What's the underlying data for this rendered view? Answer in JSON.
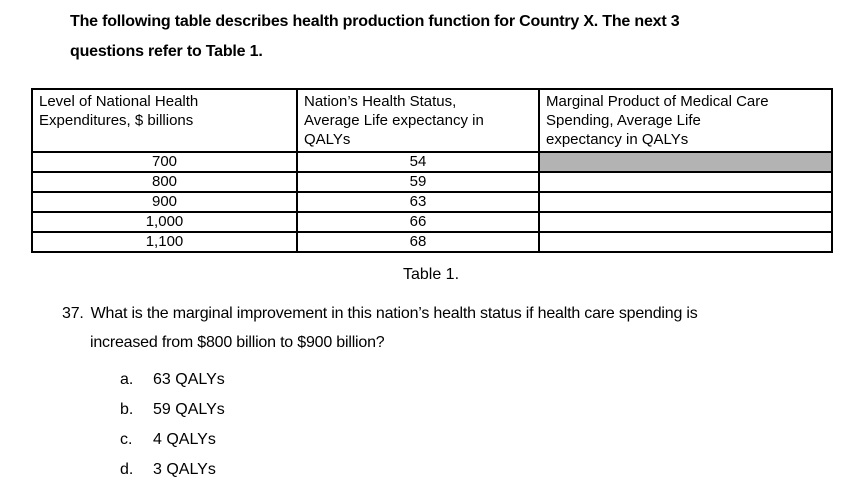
{
  "instruction": {
    "line1": "The following table describes health production function for Country X. The next 3",
    "line2": "questions refer to Table 1."
  },
  "table": {
    "columns": [
      {
        "header": "Level of National Health\nExpenditures, $ billions"
      },
      {
        "header": "Nation’s Health Status,\nAverage Life expectancy in\nQALYs"
      },
      {
        "header": "Marginal Product of Medical Care\nSpending, Average Life\nexpectancy in QALYs"
      }
    ],
    "rows": [
      {
        "expenditure": "700",
        "health_status": "54",
        "marginal_product": "",
        "shaded": true
      },
      {
        "expenditure": "800",
        "health_status": "59",
        "marginal_product": "",
        "shaded": false
      },
      {
        "expenditure": "900",
        "health_status": "63",
        "marginal_product": "",
        "shaded": false
      },
      {
        "expenditure": "1,000",
        "health_status": "66",
        "marginal_product": "",
        "shaded": false
      },
      {
        "expenditure": "1,100",
        "health_status": "68",
        "marginal_product": "",
        "shaded": false
      }
    ],
    "shaded_cell_color": "#b3b3b3",
    "border_color": "#000000",
    "caption": "Table 1."
  },
  "question": {
    "number": "37.",
    "line1": "What is the marginal improvement in this nation’s health status if health care spending is",
    "line2": "increased from $800 billion to $900 billion?",
    "options": [
      {
        "label": "a.",
        "text": "63 QALYs"
      },
      {
        "label": "b.",
        "text": "59 QALYs"
      },
      {
        "label": "c.",
        "text": "4 QALYs"
      },
      {
        "label": "d.",
        "text": "3 QALYs"
      }
    ]
  }
}
